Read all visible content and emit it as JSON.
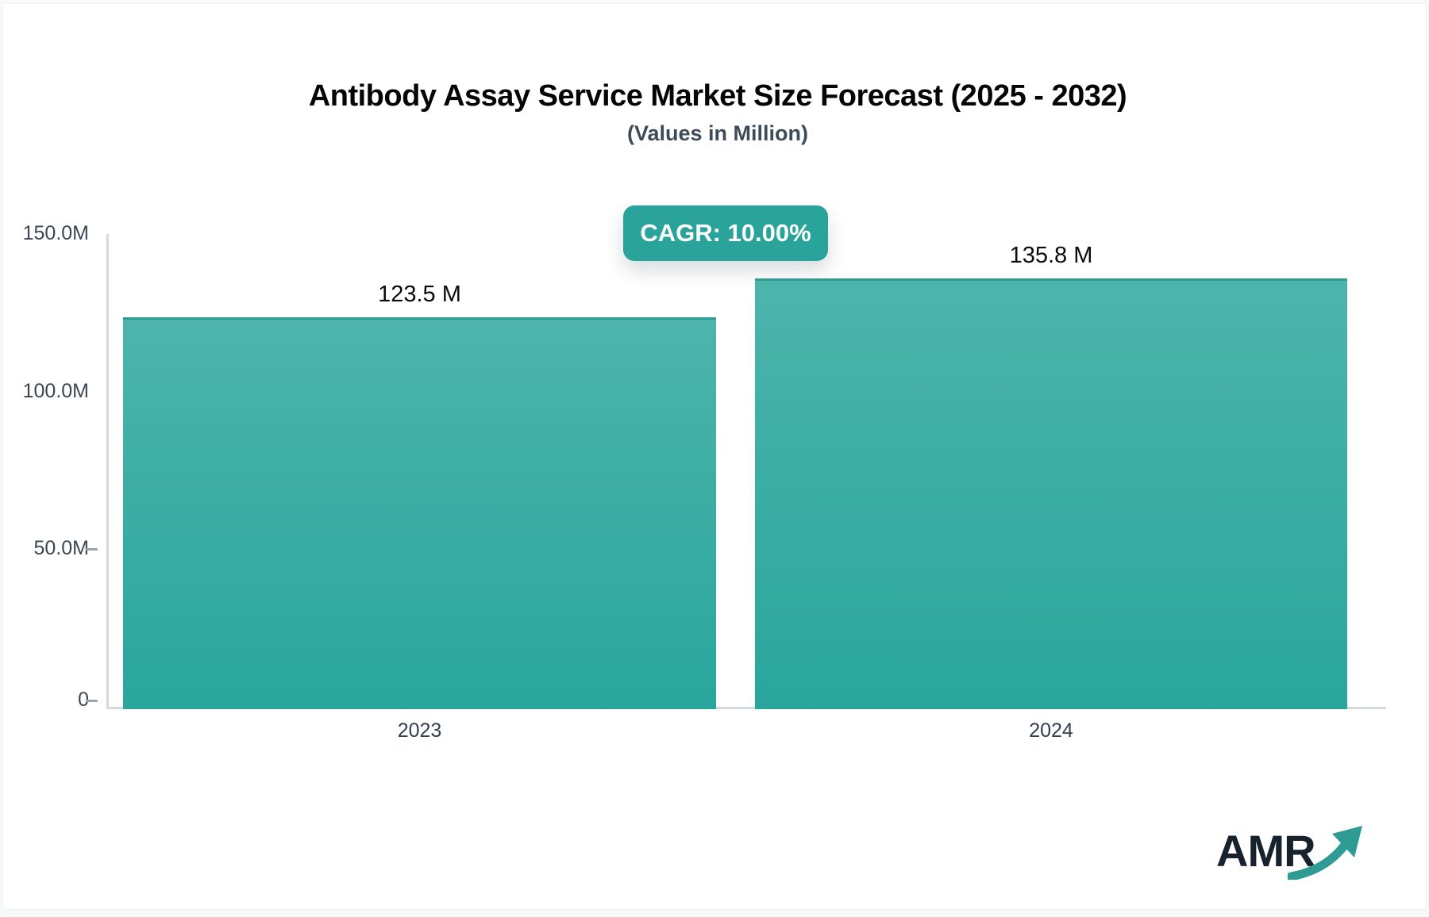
{
  "page": {
    "frame_bg": "#f6f8f9",
    "card_bg": "#ffffff"
  },
  "header": {
    "title": "Antibody Assay Service Market Size Forecast (2025 - 2032)",
    "subtitle": "(Values in Million)"
  },
  "cagr_badge": {
    "label": "CAGR: 10.00%",
    "bg": "#2aa49a",
    "text_color": "#ffffff"
  },
  "chart_data": {
    "type": "bar",
    "title": "Antibody Assay Service Market Size Forecast (2025 - 2032)",
    "subtitle": "(Values in Million)",
    "categories": [
      "2023",
      "2024"
    ],
    "values": [
      123.5,
      135.8
    ],
    "bar_labels": [
      "123.5 M",
      "135.8 M"
    ],
    "unit": "Million",
    "cagr_percent": "10.00%",
    "ylim": [
      0,
      150
    ],
    "y_ticks": [
      {
        "label": "150.0M",
        "value": 150,
        "dash": false
      },
      {
        "label": "100.0M",
        "value": 100,
        "dash": false
      },
      {
        "label": "50.0M",
        "value": 50,
        "dash": true
      },
      {
        "label": "0",
        "value": 0,
        "dash": true
      }
    ],
    "grid": false,
    "legend": false,
    "colors": {
      "bar_top": "#4db4ab",
      "bar_bottom": "#29a69c",
      "bar_top_stroke": "#2f9c92",
      "axis": "#d5d8de"
    }
  },
  "logo": {
    "text": "AMR",
    "text_color": "#17222c",
    "arrow_color": "#2e9c94",
    "arrow_icon": "trending-up-arrow"
  }
}
